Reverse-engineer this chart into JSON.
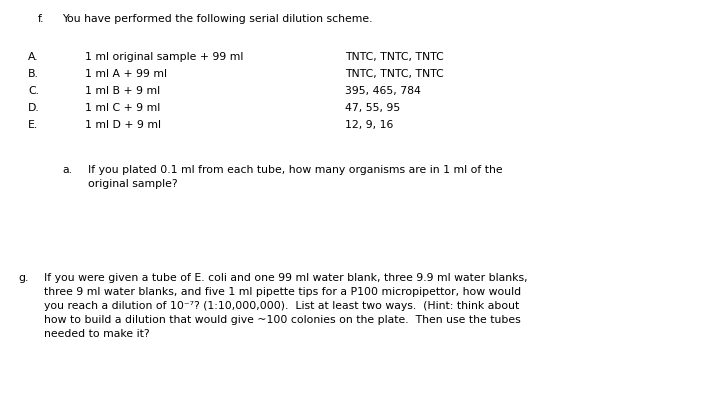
{
  "background_color": "#ffffff",
  "title_label": "f.",
  "title_text": "You have performed the following serial dilution scheme.",
  "rows": [
    {
      "letter": "A.",
      "dilution": "1 ml original sample + 99 ml",
      "counts": "TNTC, TNTC, TNTC"
    },
    {
      "letter": "B.",
      "dilution": "1 ml A + 99 ml",
      "counts": "TNTC, TNTC, TNTC"
    },
    {
      "letter": "C.",
      "dilution": "1 ml B + 9 ml",
      "counts": "395, 465, 784"
    },
    {
      "letter": "D.",
      "dilution": "1 ml C + 9 ml",
      "counts": "47, 55, 95"
    },
    {
      "letter": "E.",
      "dilution": "1 ml D + 9 ml",
      "counts": "12, 9, 16"
    }
  ],
  "sub_a_label": "a.",
  "sub_a_text_line1": "If you plated 0.1 ml from each tube, how many organisms are in 1 ml of the",
  "sub_a_text_line2": "original sample?",
  "sub_g_label": "g.",
  "sub_g_lines": [
    "If you were given a tube of E. coli and one 99 ml water blank, three 9.9 ml water blanks,",
    "three 9 ml water blanks, and five 1 ml pipette tips for a P100 micropipettor, how would",
    "you reach a dilution of 10⁻⁷? (1:10,000,000).  List at least two ways.  (Hint: think about",
    "how to build a dilution that would give ~100 colonies on the plate.  Then use the tubes",
    "needed to make it?"
  ],
  "font_family": "DejaVu Sans",
  "base_fontsize": 7.8,
  "text_color": "#000000",
  "figw": 7.11,
  "figh": 3.98,
  "dpi": 100
}
